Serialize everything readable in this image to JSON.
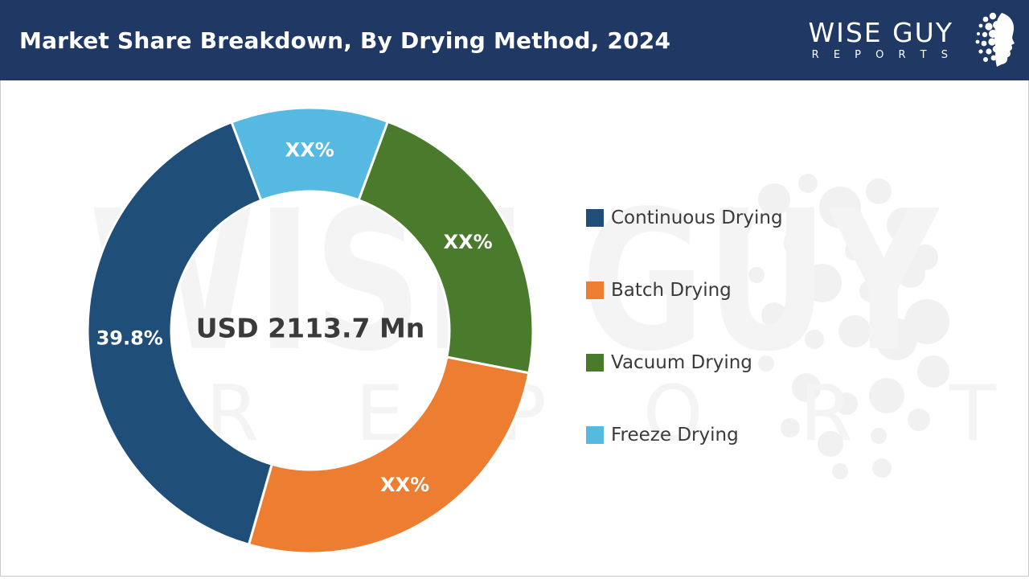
{
  "header": {
    "title": "Market Share Breakdown, By Drying Method, 2024",
    "bg_color": "#203864",
    "logo": {
      "line1": "WISE GUY",
      "line2": "R E P O R T S"
    }
  },
  "watermark": {
    "line1": "WISE GUY",
    "line2": "R E P O R T S"
  },
  "chart_data": {
    "type": "pie",
    "donut": true,
    "title": "Market Share Breakdown, By Drying Method, 2024",
    "center_label": "USD 2113.7 Mn",
    "legend_position": "right",
    "start_angle_deg": 110.7,
    "direction": "ccw",
    "segments": [
      {
        "name": "Continuous Drying",
        "value_pct": 39.8,
        "label": "39.8%",
        "color": "#1f4e79"
      },
      {
        "name": "Batch Drying",
        "value_pct": 26.4,
        "label": "XX%",
        "color": "#ed7d31"
      },
      {
        "name": "Vacuum Drying",
        "value_pct": 22.4,
        "label": "XX%",
        "color": "#4a7a2b"
      },
      {
        "name": "Freeze Drying",
        "value_pct": 11.4,
        "label": "XX%",
        "color": "#56b9e2"
      }
    ]
  }
}
